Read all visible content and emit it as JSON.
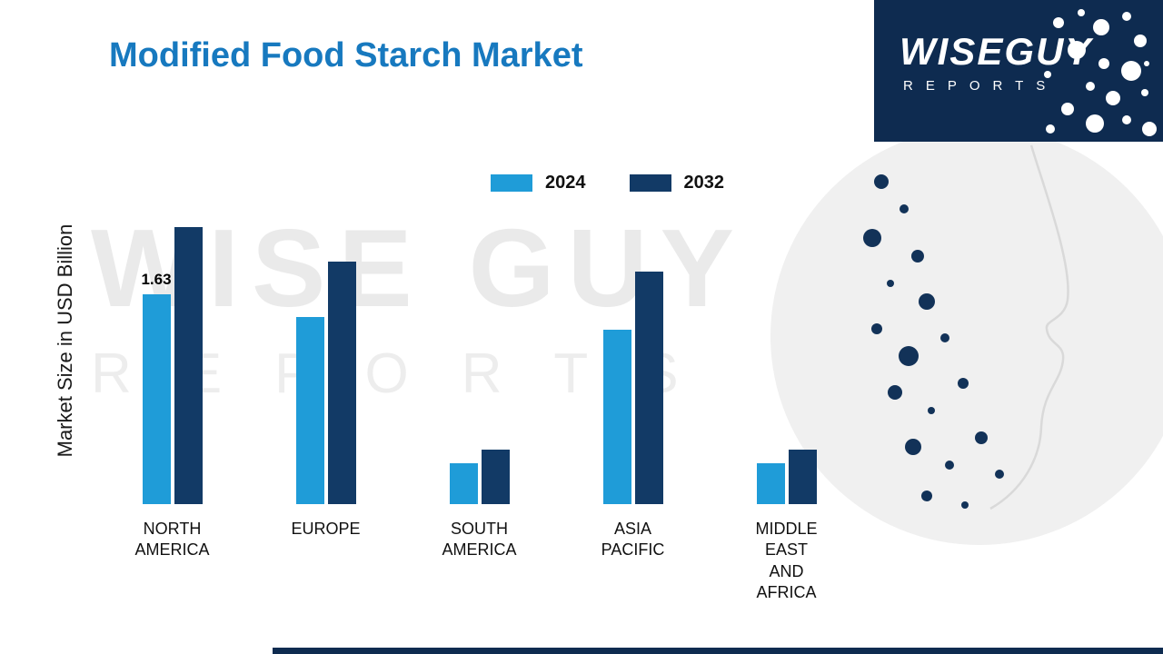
{
  "page": {
    "title": "Modified Food Starch Market"
  },
  "logo": {
    "brand": "WISEGUY",
    "sub": "REPORTS"
  },
  "watermark": {
    "line1": "WISE GUY",
    "line2": "REPORTS"
  },
  "colors": {
    "title_blue": "#1779bf",
    "series_2024_blue": "#1f9cd8",
    "series_2032_navy": "#123a66",
    "navy_block": "#0e2b50",
    "watermark_gray": "#eaeaea"
  },
  "chart_data": {
    "type": "bar",
    "title": "Modified Food Starch Market",
    "xlabel": "",
    "ylabel": "Market Size in USD Billion",
    "ylim": [
      0,
      2.5
    ],
    "grid": false,
    "legend_position": "top-center",
    "categories": [
      "NORTH\nAMERICA",
      "EUROPE",
      "SOUTH\nAMERICA",
      "ASIA\nPACIFIC",
      "MIDDLE\nEAST\nAND\nAFRICA"
    ],
    "series": [
      {
        "name": "2024",
        "color": "#1f9cd8",
        "values": [
          1.63,
          1.45,
          0.32,
          1.35,
          0.32
        ]
      },
      {
        "name": "2032",
        "color": "#123a66",
        "values": [
          2.15,
          1.88,
          0.42,
          1.8,
          0.42
        ]
      }
    ],
    "annotations": [
      {
        "series": "2024",
        "category_index": 0,
        "text": "1.63"
      }
    ]
  }
}
